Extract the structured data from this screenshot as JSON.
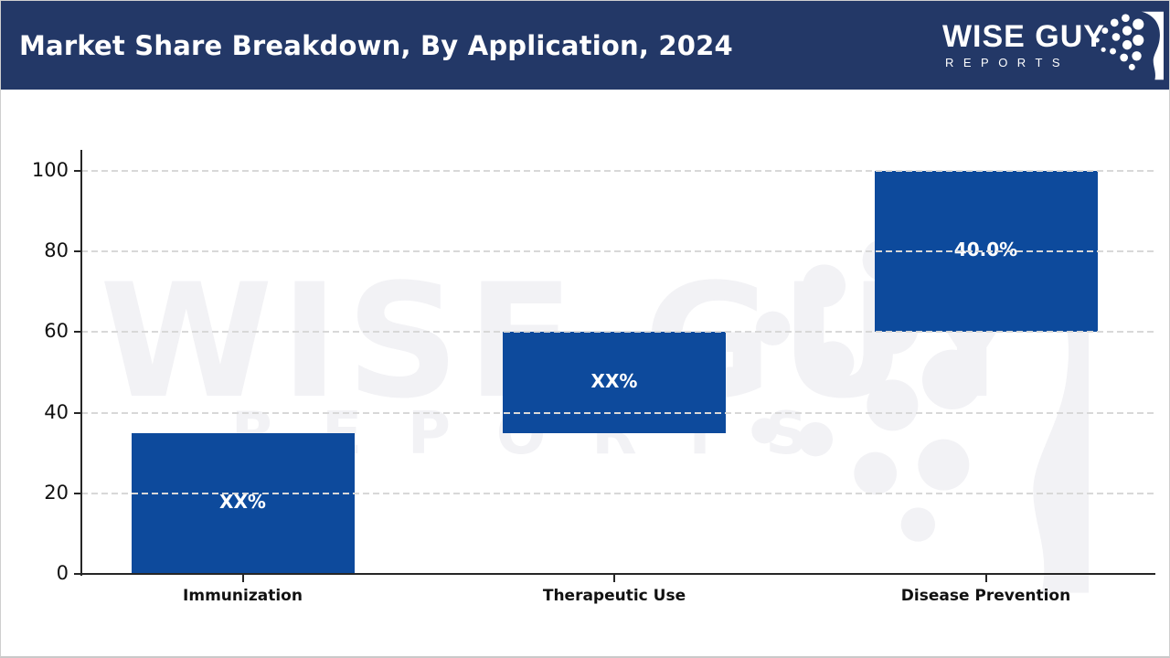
{
  "header": {
    "title": "Market Share Breakdown, By Application, 2024",
    "bg_color": "#233867",
    "logo": {
      "line1": "WISE GUY",
      "line2": "REPORTS",
      "face_icon": "dotted-face-profile"
    }
  },
  "watermark": {
    "line1": "WISE GUY",
    "line2": "REPORTS"
  },
  "chart_data": {
    "type": "bar",
    "variant": "floating-segment-waterfall",
    "title": "Market Share Breakdown, By Application, 2024",
    "categories": [
      "Immunization",
      "Therapeutic Use",
      "Disease Prevention"
    ],
    "bars": [
      {
        "category": "Immunization",
        "start": 0,
        "end": 35,
        "label": "XX%"
      },
      {
        "category": "Therapeutic Use",
        "start": 35,
        "end": 60,
        "label": "XX%"
      },
      {
        "category": "Disease Prevention",
        "start": 60,
        "end": 100,
        "label": "40.0%"
      }
    ],
    "ylim": [
      0,
      100
    ],
    "yticks": [
      0,
      20,
      40,
      60,
      80,
      100
    ],
    "xlabel": "",
    "ylabel": "",
    "grid": "horizontal-dashed",
    "legend": "none",
    "bar_color": "#0d4a9c",
    "bar_label_color": "#ffffff",
    "gridline_color": "#d8d8d8",
    "axis_color": "#262626",
    "tick_label_color": "#111111"
  }
}
